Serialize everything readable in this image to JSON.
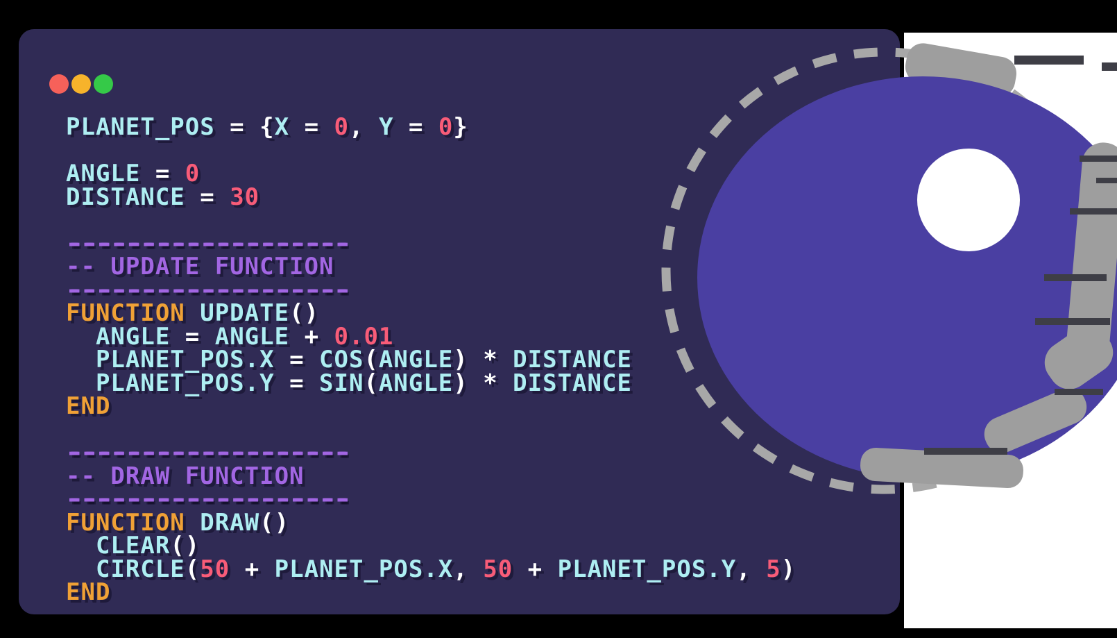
{
  "page_background": "#000000",
  "window": {
    "background": "#302b55",
    "traffic_lights": [
      {
        "name": "close",
        "color": "#f6615a"
      },
      {
        "name": "minimize",
        "color": "#f7b32b"
      },
      {
        "name": "maximize",
        "color": "#35c948"
      }
    ]
  },
  "code": {
    "token_colors": {
      "cyan": "#aeeef2",
      "white": "#ffffff",
      "pink": "#f85c78",
      "orange": "#f0a136",
      "purple": "#a266e3"
    },
    "lines": [
      {
        "tokens": [
          {
            "t": "PLANET_POS",
            "c": "cyan"
          },
          {
            "t": " = ",
            "c": "white"
          },
          {
            "t": "{",
            "c": "white"
          },
          {
            "t": "X",
            "c": "cyan"
          },
          {
            "t": " = ",
            "c": "white"
          },
          {
            "t": "0",
            "c": "pink"
          },
          {
            "t": ", ",
            "c": "white"
          },
          {
            "t": "Y",
            "c": "cyan"
          },
          {
            "t": " = ",
            "c": "white"
          },
          {
            "t": "0",
            "c": "pink"
          },
          {
            "t": "}",
            "c": "white"
          }
        ]
      },
      {
        "tokens": []
      },
      {
        "tokens": [
          {
            "t": "ANGLE",
            "c": "cyan"
          },
          {
            "t": " = ",
            "c": "white"
          },
          {
            "t": "0",
            "c": "pink"
          }
        ]
      },
      {
        "tokens": [
          {
            "t": "DISTANCE",
            "c": "cyan"
          },
          {
            "t": " = ",
            "c": "white"
          },
          {
            "t": "30",
            "c": "pink"
          }
        ]
      },
      {
        "tokens": []
      },
      {
        "tokens": [
          {
            "t": "-------------------",
            "c": "purple"
          }
        ]
      },
      {
        "tokens": [
          {
            "t": "-- UPDATE FUNCTION",
            "c": "purple"
          }
        ]
      },
      {
        "tokens": [
          {
            "t": "-------------------",
            "c": "purple"
          }
        ]
      },
      {
        "tokens": [
          {
            "t": "FUNCTION ",
            "c": "orange"
          },
          {
            "t": "UPDATE",
            "c": "cyan"
          },
          {
            "t": "()",
            "c": "white"
          }
        ]
      },
      {
        "tokens": [
          {
            "t": "  ",
            "c": "white"
          },
          {
            "t": "ANGLE",
            "c": "cyan"
          },
          {
            "t": " = ",
            "c": "white"
          },
          {
            "t": "ANGLE",
            "c": "cyan"
          },
          {
            "t": " + ",
            "c": "white"
          },
          {
            "t": "0.01",
            "c": "pink"
          }
        ]
      },
      {
        "tokens": [
          {
            "t": "  ",
            "c": "white"
          },
          {
            "t": "PLANET_POS.X",
            "c": "cyan"
          },
          {
            "t": " = ",
            "c": "white"
          },
          {
            "t": "COS",
            "c": "cyan"
          },
          {
            "t": "(",
            "c": "white"
          },
          {
            "t": "ANGLE",
            "c": "cyan"
          },
          {
            "t": ") * ",
            "c": "white"
          },
          {
            "t": "DISTANCE",
            "c": "cyan"
          }
        ]
      },
      {
        "tokens": [
          {
            "t": "  ",
            "c": "white"
          },
          {
            "t": "PLANET_POS.Y",
            "c": "cyan"
          },
          {
            "t": " = ",
            "c": "white"
          },
          {
            "t": "SIN",
            "c": "cyan"
          },
          {
            "t": "(",
            "c": "white"
          },
          {
            "t": "ANGLE",
            "c": "cyan"
          },
          {
            "t": ") * ",
            "c": "white"
          },
          {
            "t": "DISTANCE",
            "c": "cyan"
          }
        ]
      },
      {
        "tokens": [
          {
            "t": "END",
            "c": "orange"
          }
        ]
      },
      {
        "tokens": []
      },
      {
        "tokens": [
          {
            "t": "-------------------",
            "c": "purple"
          }
        ]
      },
      {
        "tokens": [
          {
            "t": "-- DRAW FUNCTION",
            "c": "purple"
          }
        ]
      },
      {
        "tokens": [
          {
            "t": "-------------------",
            "c": "purple"
          }
        ]
      },
      {
        "tokens": [
          {
            "t": "FUNCTION ",
            "c": "orange"
          },
          {
            "t": "DRAW",
            "c": "cyan"
          },
          {
            "t": "()",
            "c": "white"
          }
        ]
      },
      {
        "tokens": [
          {
            "t": "  ",
            "c": "white"
          },
          {
            "t": "CLEAR",
            "c": "cyan"
          },
          {
            "t": "()",
            "c": "white"
          }
        ]
      },
      {
        "tokens": [
          {
            "t": "  ",
            "c": "white"
          },
          {
            "t": "CIRCLE",
            "c": "cyan"
          },
          {
            "t": "(",
            "c": "white"
          },
          {
            "t": "50",
            "c": "pink"
          },
          {
            "t": " + ",
            "c": "white"
          },
          {
            "t": "PLANET_POS.X",
            "c": "cyan"
          },
          {
            "t": ", ",
            "c": "white"
          },
          {
            "t": "50",
            "c": "pink"
          },
          {
            "t": " + ",
            "c": "white"
          },
          {
            "t": "PLANET_POS.Y",
            "c": "cyan"
          },
          {
            "t": ", ",
            "c": "white"
          },
          {
            "t": "5",
            "c": "pink"
          },
          {
            "t": ")",
            "c": "white"
          }
        ]
      },
      {
        "tokens": [
          {
            "t": "END",
            "c": "orange"
          }
        ]
      }
    ]
  },
  "illustration": {
    "panel_color": "#ffffff",
    "orbit_color": "#a8a8a8",
    "planet_color": "#4a3fa2",
    "moon_color": "#ffffff",
    "sketch_gray": "#9e9e9e",
    "sketch_dark": "#3e3e46"
  }
}
